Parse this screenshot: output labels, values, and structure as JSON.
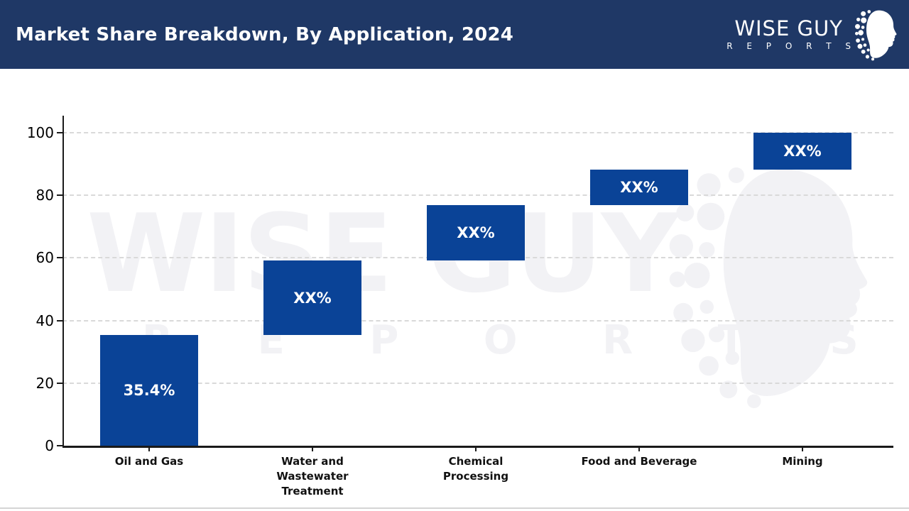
{
  "header": {
    "title": "Market Share Breakdown, By Application, 2024",
    "logo": {
      "name": "WISE GUY",
      "sub": "R E P O R T S"
    }
  },
  "watermark": {
    "line1": "WISE GUY",
    "line2": "R E P O R T S"
  },
  "colors": {
    "header_bg": "#1f3866",
    "title": "#ffffff",
    "bar": "#0a4397",
    "bar_label": "#ffffff",
    "grid": "#d9d9d9",
    "axis": "#1a1a1a",
    "watermark": "#f2f2f5"
  },
  "chart_data": {
    "type": "bar",
    "subtype": "waterfall",
    "title": "Market Share Breakdown, By Application, 2024",
    "xlabel": "",
    "ylabel": "",
    "ylim": [
      0,
      105
    ],
    "yticks": [
      0,
      20,
      40,
      60,
      80,
      100
    ],
    "grid": "horizontal dashed",
    "legend": "none",
    "categories": [
      "Oil and Gas",
      "Water and Wastewater Treatment",
      "Chemical Processing",
      "Food and Beverage",
      "Mining"
    ],
    "category_label_lines": [
      [
        "Oil and Gas"
      ],
      [
        "Water and",
        "Wastewater",
        "Treatment"
      ],
      [
        "Chemical",
        "Processing"
      ],
      [
        "Food and Beverage"
      ],
      [
        "Mining"
      ]
    ],
    "segments": [
      {
        "category": "Oil and Gas",
        "from": 0,
        "to": 35.4,
        "label": "35.4%"
      },
      {
        "category": "Water and Wastewater Treatment",
        "from": 35.4,
        "to": 59.1,
        "label": "XX%"
      },
      {
        "category": "Chemical Processing",
        "from": 59.1,
        "to": 76.9,
        "label": "XX%"
      },
      {
        "category": "Food and Beverage",
        "from": 76.9,
        "to": 88.3,
        "label": "XX%"
      },
      {
        "category": "Mining",
        "from": 88.3,
        "to": 100,
        "label": "XX%"
      }
    ]
  }
}
